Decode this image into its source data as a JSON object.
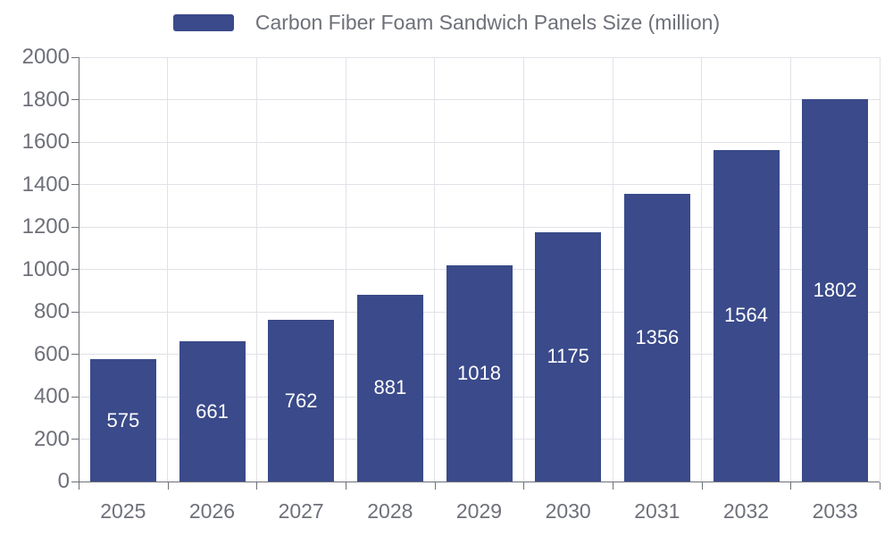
{
  "legend": {
    "label": "Carbon Fiber Foam Sandwich Panels Size (million)"
  },
  "chart_data": {
    "type": "bar",
    "title": "Carbon Fiber Foam Sandwich Panels Size (million)",
    "categories": [
      "2025",
      "2026",
      "2027",
      "2028",
      "2029",
      "2030",
      "2031",
      "2032",
      "2033"
    ],
    "values": [
      575,
      661,
      762,
      881,
      1018,
      1175,
      1356,
      1564,
      1802
    ],
    "xlabel": "",
    "ylabel": "",
    "ylim": [
      0,
      2000
    ],
    "ytick_step": 200,
    "ytick_labels": [
      "0",
      "200",
      "400",
      "600",
      "800",
      "1000",
      "1200",
      "1400",
      "1600",
      "1800",
      "2000"
    ],
    "grid": true,
    "legend_position": "top",
    "value_labels": "inside-center",
    "colors": {
      "bar": "#3A4A8A",
      "value_label": "#FFFFFF",
      "axis_label": "#6E7079",
      "axis_line": "#6E7079",
      "grid_line": "#E0E2E8",
      "background": "#FFFFFF"
    }
  }
}
